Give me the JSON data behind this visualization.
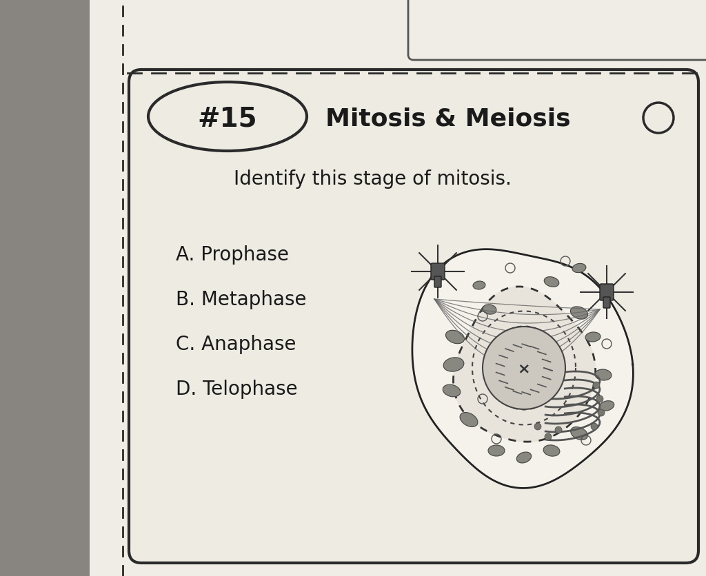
{
  "bg_gray": "#888580",
  "paper_color": "#f0ede6",
  "card_color": "#eeebe3",
  "border_color": "#2a2a2a",
  "text_color": "#1a1a1a",
  "dashed_color": "#2a2a2a",
  "number_label": "#15",
  "title": "Mitosis & Meiosis",
  "subtitle": "Identify this stage of mitosis.",
  "choices": [
    "A. Prophase",
    "B. Metaphase",
    "C. Anaphase",
    "D. Telophase"
  ],
  "title_fontsize": 26,
  "subtitle_fontsize": 20,
  "choices_fontsize": 20,
  "number_fontsize": 28
}
